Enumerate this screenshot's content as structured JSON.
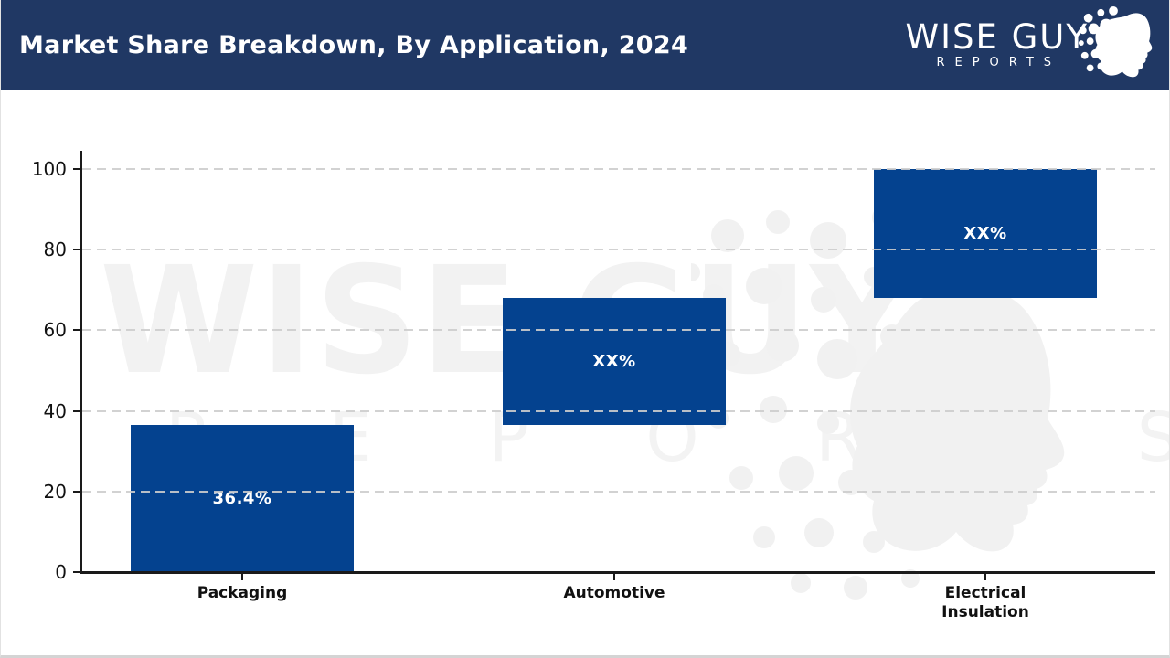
{
  "header": {
    "title": "Market Share Breakdown, By Application, 2024",
    "background_color": "#203864",
    "brand": {
      "line1": "WISE GUY",
      "line2": "REPORTS",
      "face_icon": "dotted-head-profile"
    }
  },
  "watermark": {
    "line1": "WISE GUY",
    "line2": "R E P O R T S",
    "face_icon": "dotted-head-profile",
    "color": "#f2f2f2"
  },
  "chart_data": {
    "type": "bar",
    "variant": "floating-waterfall",
    "title": "Market Share Breakdown, By Application, 2024",
    "categories": [
      "Packaging",
      "Automotive",
      "Electrical Insulation"
    ],
    "bars": [
      {
        "category": "Packaging",
        "start": 0,
        "end": 36.4,
        "label": "36.4%"
      },
      {
        "category": "Automotive",
        "start": 36.4,
        "end": 68,
        "label": "XX%"
      },
      {
        "category": "Electrical Insulation",
        "start": 68,
        "end": 100,
        "label": "XX%"
      }
    ],
    "xlabel": "",
    "ylabel": "",
    "ylim": [
      0,
      100
    ],
    "yticks": [
      0,
      20,
      40,
      60,
      80,
      100
    ],
    "grid": "horizontal-dashed",
    "legend": "none",
    "bar_color": "#04428f",
    "bar_label_color": "#ffffff",
    "gridline_color": "#cdcdcd",
    "axis_color": "#1a1a1a"
  }
}
